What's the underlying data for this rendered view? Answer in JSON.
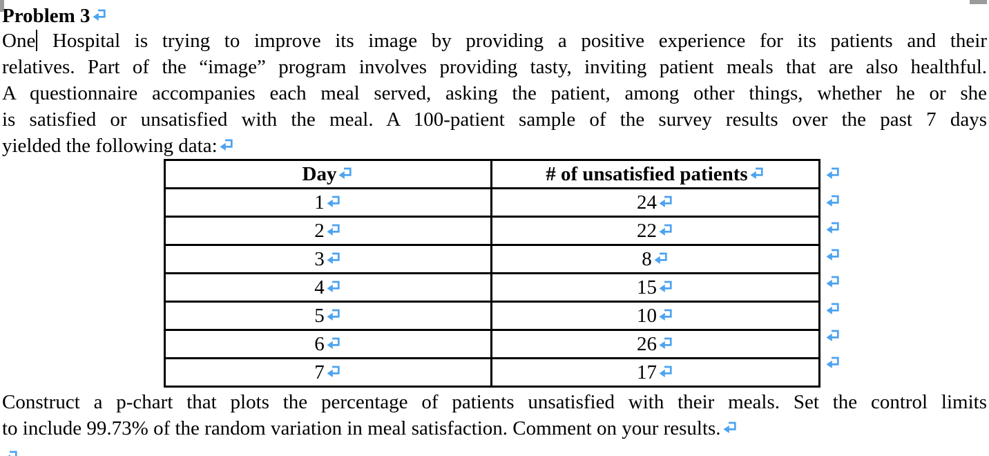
{
  "heading": {
    "title": "Problem 3"
  },
  "intro": {
    "line1_before_caret": "One",
    "line1_after_caret": "Hospital is trying to improve its image by providing a positive experience for its patients and their",
    "line2": "relatives. Part of the “image” program involves providing tasty, inviting patient meals that are also healthful.",
    "line3": "A questionnaire accompanies each meal served, asking the patient, among other things, whether he or she",
    "line4": "is satisfied or unsatisfied with the meal. A 100-patient sample of the survey results over the past 7 days",
    "line5": "yielded the following data:"
  },
  "table": {
    "headers": [
      "Day",
      "# of unsatisfied patients"
    ],
    "rows": [
      [
        "1",
        "24"
      ],
      [
        "2",
        "22"
      ],
      [
        "3",
        "8"
      ],
      [
        "4",
        "15"
      ],
      [
        "5",
        "10"
      ],
      [
        "6",
        "26"
      ],
      [
        "7",
        "17"
      ]
    ]
  },
  "outro": {
    "line1": "Construct a p-chart that plots the percentage of patients unsatisfied with their meals. Set the control limits",
    "line2": "to include 99.73% of the random variation in meal satisfaction. Comment on your results."
  },
  "colors": {
    "formatting_mark_blue": "#4da3f0",
    "text": "#000000",
    "table_border": "#000000"
  }
}
